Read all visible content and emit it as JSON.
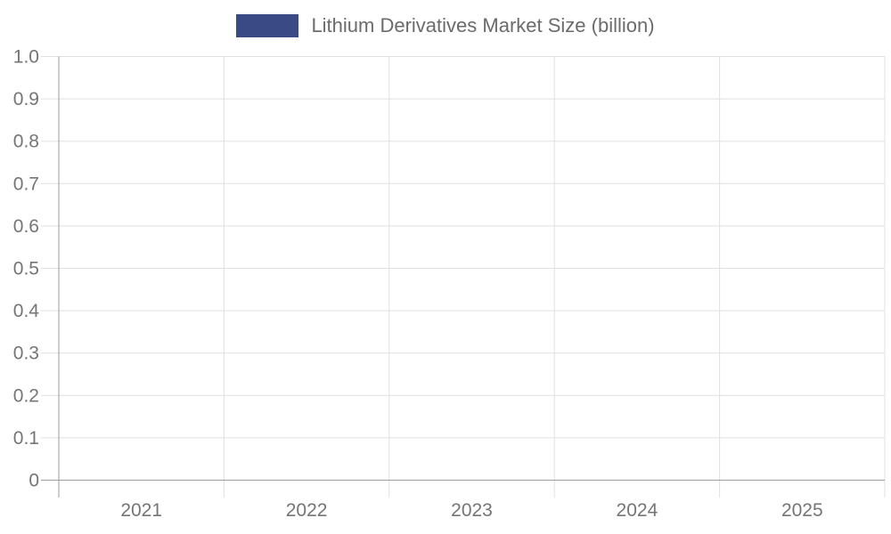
{
  "legend": {
    "label": "Lithium Derivatives Market Size (billion)",
    "swatch_color": "#394a84"
  },
  "chart_data": {
    "type": "bar",
    "title": "Lithium Derivatives Market Size (billion)",
    "categories": [
      "2021",
      "2022",
      "2023",
      "2024",
      "2025"
    ],
    "series": [
      {
        "name": "Lithium Derivatives Market Size (billion)",
        "values": [
          null,
          null,
          null,
          null,
          null
        ]
      }
    ],
    "xlabel": "",
    "ylabel": "",
    "ylim": [
      0,
      1.0
    ],
    "y_tick_step": 0.1,
    "y_ticks": [
      "1.0",
      "0.9",
      "0.8",
      "0.7",
      "0.6",
      "0.5",
      "0.4",
      "0.3",
      "0.2",
      "0.1",
      "0"
    ],
    "grid": true,
    "legend_position": "top-center",
    "colors": {
      "series": "#394a84",
      "gridline": "#e0e0e0",
      "axis": "#9e9e9e",
      "tick_label": "#757575",
      "legend_text": "#6b6b6b",
      "background": "#ffffff"
    }
  }
}
